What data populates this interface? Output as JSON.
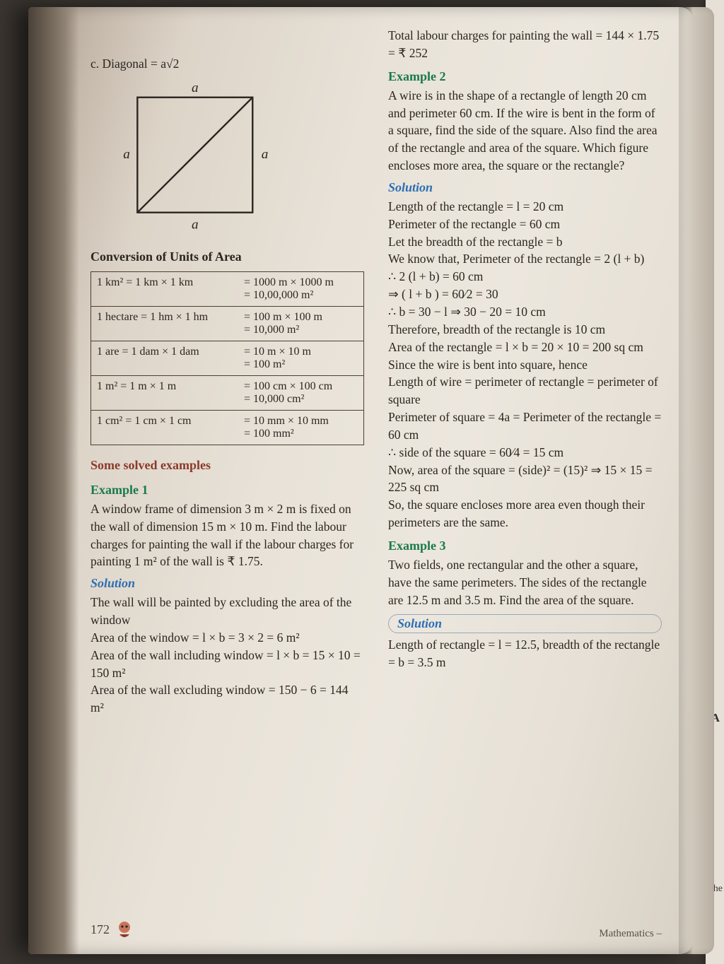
{
  "left": {
    "item_c": "c.   Diagonal = a√2",
    "diagram": {
      "side_label": "a",
      "stroke": "#2b2620"
    },
    "conv_heading": "Conversion of Units of Area",
    "units": [
      {
        "l": "1 km² = 1 km × 1 km",
        "r": "= 1000 m × 1000 m\n= 10,00,000 m²"
      },
      {
        "l": "1 hectare = 1 hm × 1 hm",
        "r": "= 100 m × 100 m\n= 10,000 m²"
      },
      {
        "l": "1 are = 1 dam × 1 dam",
        "r": "= 10 m × 10 m\n= 100 m²"
      },
      {
        "l": "1 m² = 1 m × 1 m",
        "r": "= 100 cm × 100 cm\n= 10,000 cm²"
      },
      {
        "l": "1 cm² = 1 cm × 1 cm",
        "r": "= 10 mm × 10 mm\n= 100 mm²"
      }
    ],
    "sse": "Some solved examples",
    "ex1": "Example 1",
    "ex1_q": "A window frame of dimension 3 m × 2 m is fixed on the wall of dimension 15 m × 10 m. Find the labour charges for painting the wall if the labour charges for painting 1 m² of the wall is ₹ 1.75.",
    "sol": "Solution",
    "s1": "The wall will be painted by excluding the area of the window",
    "s2": "Area of the window = l × b = 3 × 2 = 6 m²",
    "s3": "Area of the wall including window = l × b = 15 × 10 = 150 m²",
    "s4": "Area of the wall excluding window = 150 − 6 = 144 m²",
    "page_num": "172"
  },
  "right": {
    "t1": "Total labour charges for painting the wall = 144 × 1.75 = ₹ 252",
    "ex2": "Example 2",
    "ex2_q": "A wire is in the shape of a rectangle of length 20 cm and perimeter 60 cm. If the wire is bent in the form of a square, find the side of the square. Also find the area of the rectangle and area of the square. Which figure encloses more area, the square or the rectangle?",
    "sol": "Solution",
    "l1": "Length of the rectangle = l = 20 cm",
    "l2": "Perimeter of the rectangle = 60 cm",
    "l3": "Let the breadth of the rectangle = b",
    "l4": "We know that, Perimeter of the rectangle = 2 (l + b)",
    "l5": "∴ 2 (l + b) = 60 cm",
    "l6": "⇒ ( l + b ) = 60⁄2 = 30",
    "l7": "∴ b = 30 − l ⇒ 30 − 20 = 10 cm",
    "l8": "Therefore, breadth of the rectangle is 10 cm",
    "l9": "Area of the rectangle = l × b = 20 × 10 = 200 sq cm",
    "l10": "Since the wire is bent into square, hence",
    "l11": "Length of wire = perimeter of rectangle = perimeter of square",
    "l12": "Perimeter of square = 4a = Perimeter of the rectangle = 60 cm",
    "l13": "∴ side of the square = 60⁄4 = 15 cm",
    "l14": "Now, area of the square = (side)² = (15)² ⇒ 15 × 15 = 225 sq cm",
    "l15": "So, the square encloses more area even though their perimeters are the same.",
    "ex3": "Example 3",
    "ex3_q": "Two fields, one rectangular and the other a square, have the same perimeters. The sides of the rectangle are 12.5 m and 3.5 m. Find the area of the square.",
    "sol3": "Solution",
    "s31": "Length of rectangle = l = 12.5, breadth of the rectangle = b = 3.5 m",
    "foot": "Mathematics –"
  },
  "peek": {
    "a": "A",
    "m": "Mathe"
  },
  "colors": {
    "example": "#1a7a4a",
    "solution": "#2b6fb3",
    "text": "#2b2620",
    "border": "#4a4030"
  }
}
